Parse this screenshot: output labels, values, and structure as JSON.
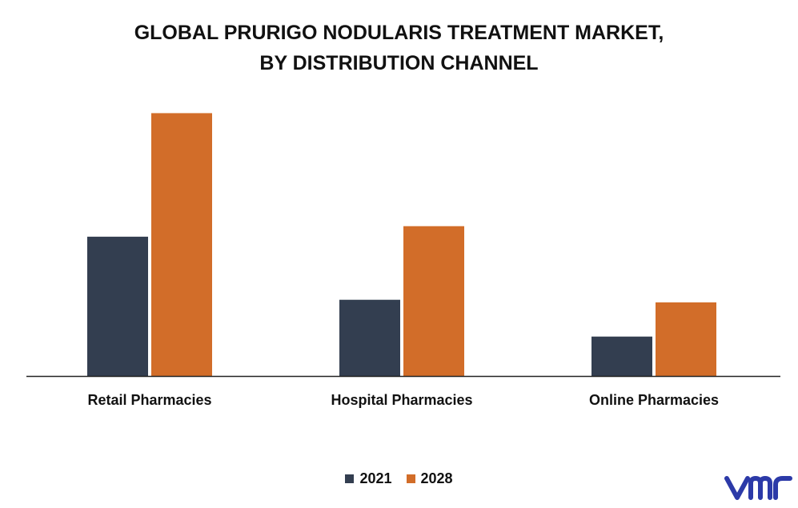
{
  "title_line1": "GLOBAL PRURIGO NODULARIS TREATMENT MARKET,",
  "title_line2": "BY DISTRIBUTION CHANNEL",
  "colors": {
    "series_2021": "#333e50",
    "series_2028": "#d26d29",
    "axis": "#222222"
  },
  "chart_data": {
    "type": "bar",
    "title": "GLOBAL PRURIGO NODULARIS TREATMENT MARKET, BY DISTRIBUTION CHANNEL",
    "categories": [
      "Retail Pharmacies",
      "Hospital Pharmacies",
      "Online Pharmacies"
    ],
    "series": [
      {
        "name": "2021",
        "values": [
          5.3,
          2.9,
          1.5
        ]
      },
      {
        "name": "2028",
        "values": [
          10.0,
          5.7,
          2.8
        ]
      }
    ],
    "ylim": [
      0,
      10.5
    ],
    "grid": false,
    "legend": "bottom-center"
  },
  "logo_text": "vmr"
}
